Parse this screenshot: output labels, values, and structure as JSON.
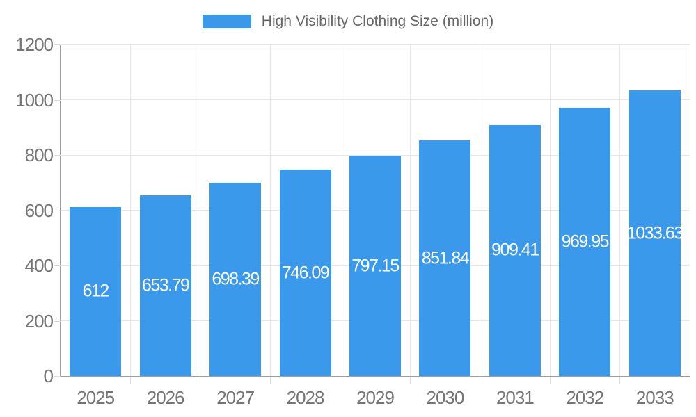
{
  "colors": {
    "bar": "#3B99EC",
    "bar_label": "#ffffff",
    "grid": "#e6e6e6",
    "tick": "#dcdcdc",
    "axis": "#9e9e9e",
    "tick_text": "#757575",
    "legend_text": "#666666",
    "background": "#ffffff"
  },
  "chart_data": {
    "type": "bar",
    "title": "High Visibility Clothing Size (million)",
    "legend": [
      "High Visibility Clothing Size (million)"
    ],
    "legend_position": "top-center",
    "categories": [
      "2025",
      "2026",
      "2027",
      "2028",
      "2029",
      "2030",
      "2031",
      "2032",
      "2033"
    ],
    "values": [
      612,
      653.79,
      698.39,
      746.09,
      797.15,
      851.84,
      909.41,
      969.95,
      1033.63
    ],
    "value_labels": [
      "612",
      "653.79",
      "698.39",
      "746.09",
      "797.15",
      "851.84",
      "909.41",
      "969.95",
      "1033.63"
    ],
    "xlabel": "",
    "ylabel": "",
    "ylim": [
      0,
      1200
    ],
    "yticks": [
      0,
      200,
      400,
      600,
      800,
      1000,
      1200
    ],
    "grid": true,
    "value_label_position": "inside-center"
  }
}
